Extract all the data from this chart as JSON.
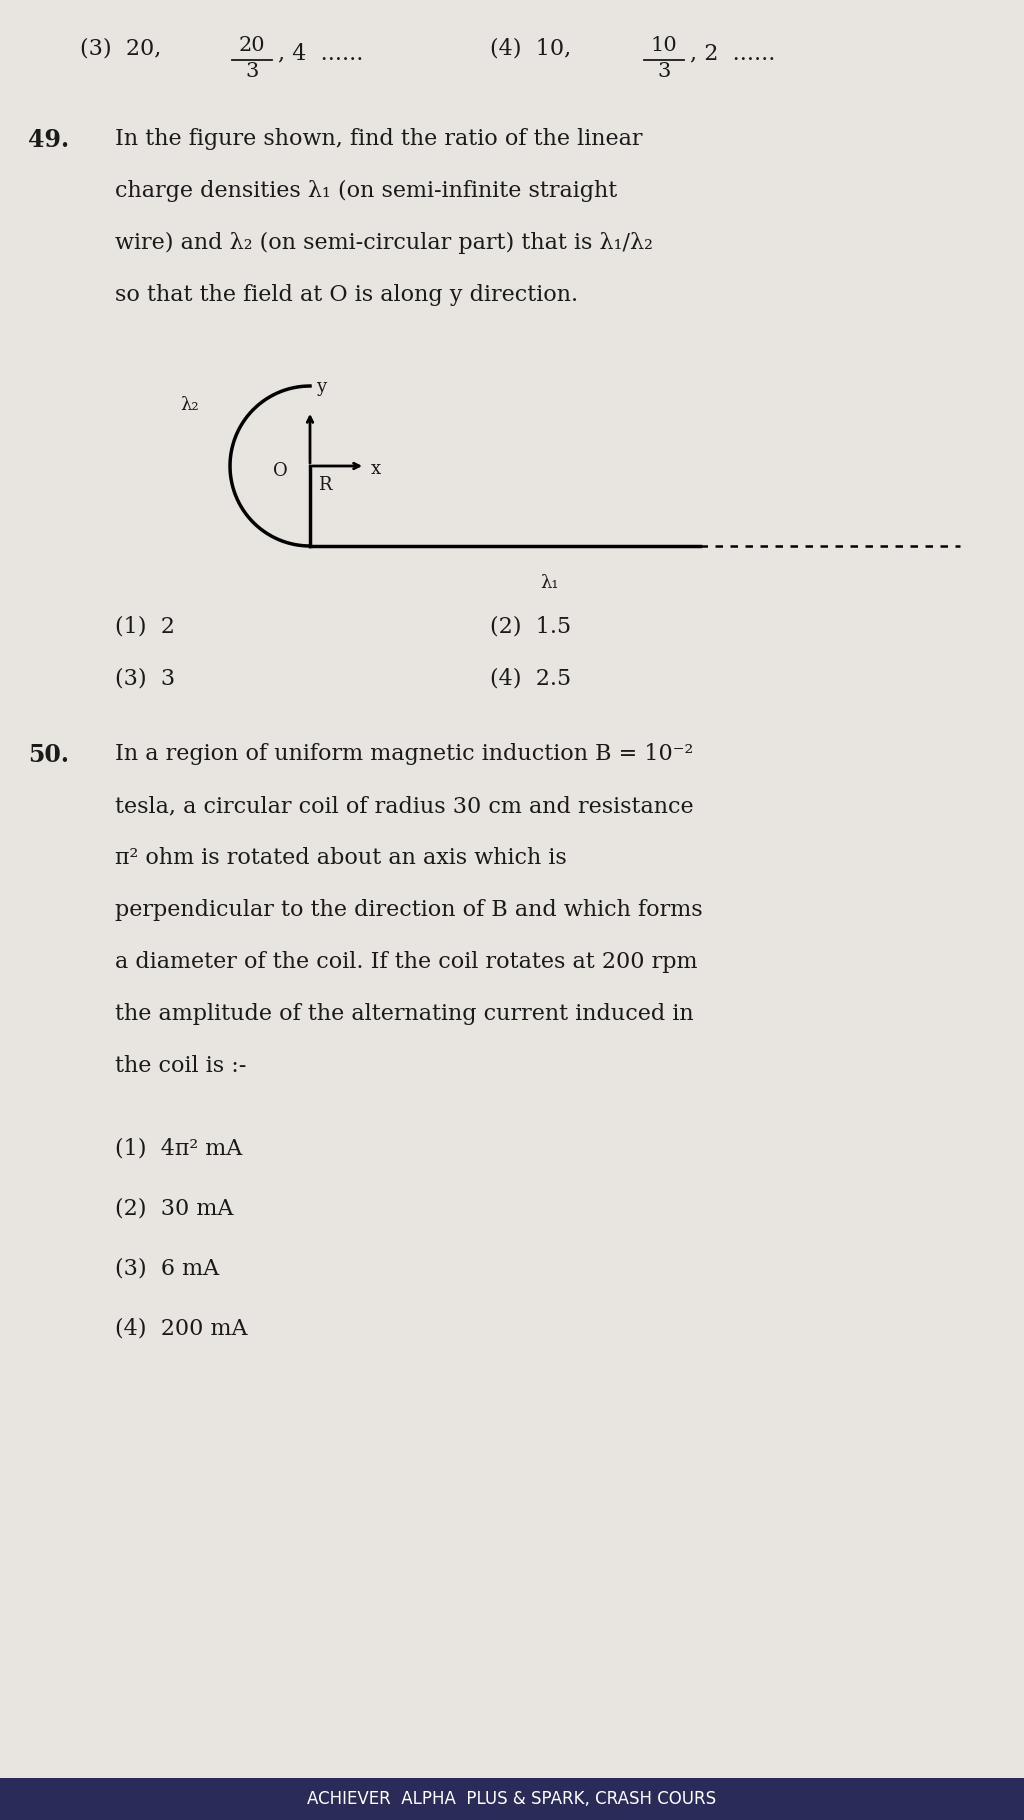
{
  "bg_color": "#e8e4e0",
  "text_color": "#1a1a1a",
  "fig_width": 10.24,
  "fig_height": 18.2,
  "frac_left_num": "20",
  "frac_left_den": "3",
  "frac_right_num": "10",
  "frac_right_den": "3",
  "q49_lines": [
    "In the figure shown, find the ratio of the linear",
    "charge densities λ₁ (on semi-infinite straight",
    "wire) and λ₂ (on semi-circular part) that is λ₁/λ₂",
    "so that the field at O is along y direction."
  ],
  "q49_opts_left": [
    "(1)  2",
    "(3)  3"
  ],
  "q49_opts_right": [
    "(2)  1.5",
    "(4)  2.5"
  ],
  "q50_lines": [
    "In a region of uniform magnetic induction B = 10⁻²",
    "tesla, a circular coil of radius 30 cm and resistance",
    "π² ohm is rotated about an axis which is",
    "perpendicular to the direction of B and which forms",
    "a diameter of the coil. If the coil rotates at 200 rpm",
    "the amplitude of the alternating current induced in",
    "the coil is :-"
  ],
  "q50_opts": [
    "(1)  4π² mA",
    "(2)  30 mA",
    "(3)  6 mA",
    "(4)  200 mA"
  ],
  "footer": "ACHIEVER  ALPHA  PLUS & SPARK, CRASH COURS"
}
